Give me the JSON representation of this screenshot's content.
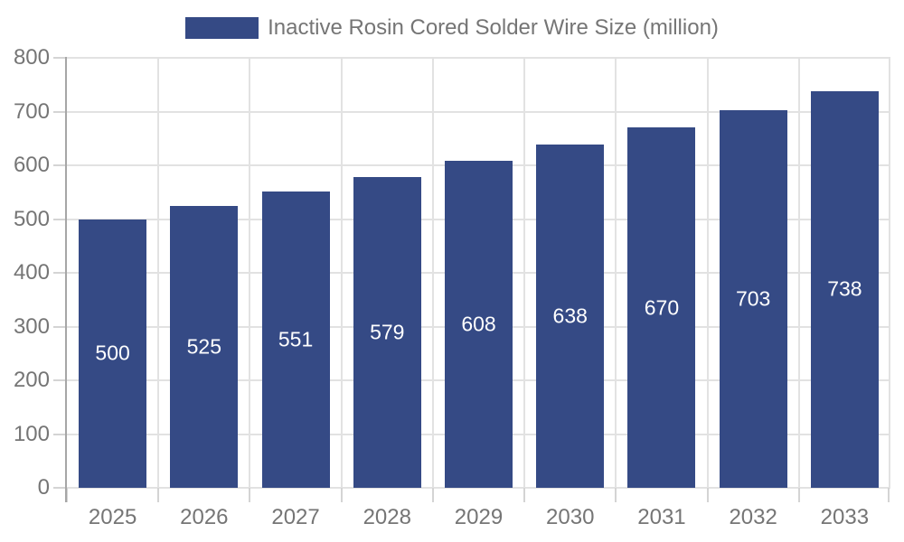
{
  "chart_data": {
    "type": "bar",
    "title": "",
    "xlabel": "",
    "ylabel": "",
    "categories": [
      "2025",
      "2026",
      "2027",
      "2028",
      "2029",
      "2030",
      "2031",
      "2032",
      "2033"
    ],
    "series": [
      {
        "name": "Inactive Rosin Cored Solder Wire Size (million)",
        "values": [
          500,
          525,
          551,
          579,
          608,
          638,
          670,
          703,
          738
        ]
      }
    ],
    "ylim": [
      0,
      800
    ],
    "yticks": [
      0,
      100,
      200,
      300,
      400,
      500,
      600,
      700,
      800
    ],
    "grid": true,
    "bar_labels_shown": true,
    "legend_position": "top-center",
    "colors": {
      "bar": "#354a85",
      "bar_label": "#ffffff",
      "axis_label": "#757575",
      "legend_text": "#757575",
      "gridline": "#e2e2e2",
      "axis_line": "#a6a6a6",
      "tick": "#d4d4d4"
    }
  }
}
